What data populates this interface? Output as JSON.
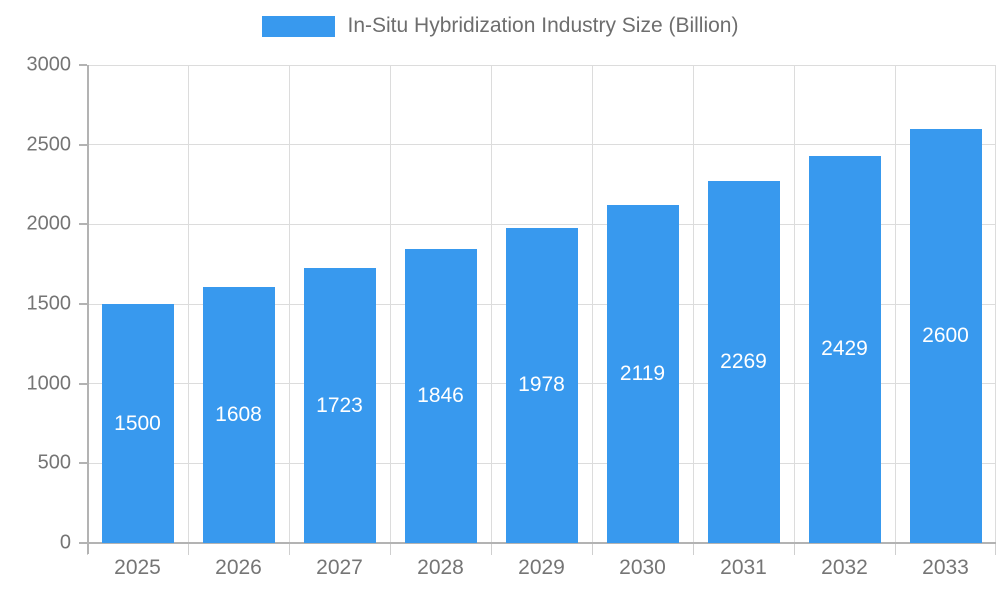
{
  "legend": {
    "label": "In-Situ Hybridization Industry Size (Billion)",
    "swatch_color": "#3899EE"
  },
  "chart_data": {
    "type": "bar",
    "title": "In-Situ Hybridization Industry Size (Billion)",
    "categories": [
      "2025",
      "2026",
      "2027",
      "2028",
      "2029",
      "2030",
      "2031",
      "2032",
      "2033"
    ],
    "values": [
      1500,
      1608,
      1723,
      1846,
      1978,
      2119,
      2269,
      2429,
      2600
    ],
    "series": [
      {
        "name": "In-Situ Hybridization Industry Size (Billion)",
        "values": [
          1500,
          1608,
          1723,
          1846,
          1978,
          2119,
          2269,
          2429,
          2600
        ]
      }
    ],
    "xlabel": "",
    "ylabel": "",
    "ylim": [
      0,
      3000
    ],
    "yticks": [
      0,
      500,
      1000,
      1500,
      2000,
      2500,
      3000
    ],
    "grid": true,
    "legend_position": "top",
    "bar_color": "#3899EE",
    "value_label_color": "#ffffff"
  },
  "colors": {
    "bar": "#3899EE",
    "gridline": "#dcdcdc",
    "axis": "#b3b3b3",
    "tick_text": "#757575",
    "legend_text": "#6e6e6e",
    "background": "#ffffff"
  }
}
